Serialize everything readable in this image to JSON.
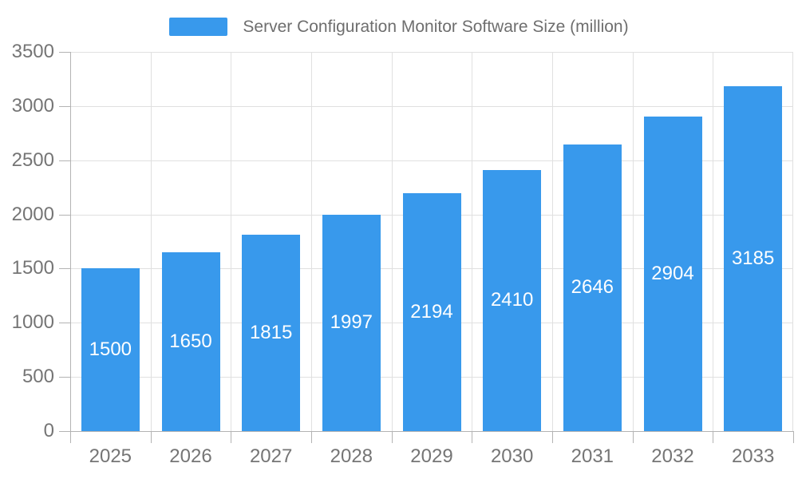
{
  "legend": {
    "label": "Server Configuration Monitor Software Size (million)"
  },
  "chart_data": {
    "type": "bar",
    "title": "Server Configuration Monitor Software Size (million)",
    "series_name": "Server Configuration Monitor Software Size (million)",
    "categories": [
      "2025",
      "2026",
      "2027",
      "2028",
      "2029",
      "2030",
      "2031",
      "2032",
      "2033"
    ],
    "values": [
      1500,
      1650,
      1815,
      1997,
      2194,
      2410,
      2646,
      2904,
      3185
    ],
    "xlabel": "",
    "ylabel": "",
    "ylim": [
      0,
      3500
    ],
    "yticks": [
      0,
      500,
      1000,
      1500,
      2000,
      2500,
      3000,
      3500
    ],
    "grid": true,
    "legend_position": "top",
    "value_labels": "inside-center"
  },
  "colors": {
    "bar": "#3899EC",
    "bar_label": "#FFFFFF",
    "grid_line": "#E0E0E0",
    "axis_line": "#B3B3B3",
    "tick_text": "#757575",
    "legend_text": "#6E6E6E",
    "background": "#FFFFFF"
  }
}
